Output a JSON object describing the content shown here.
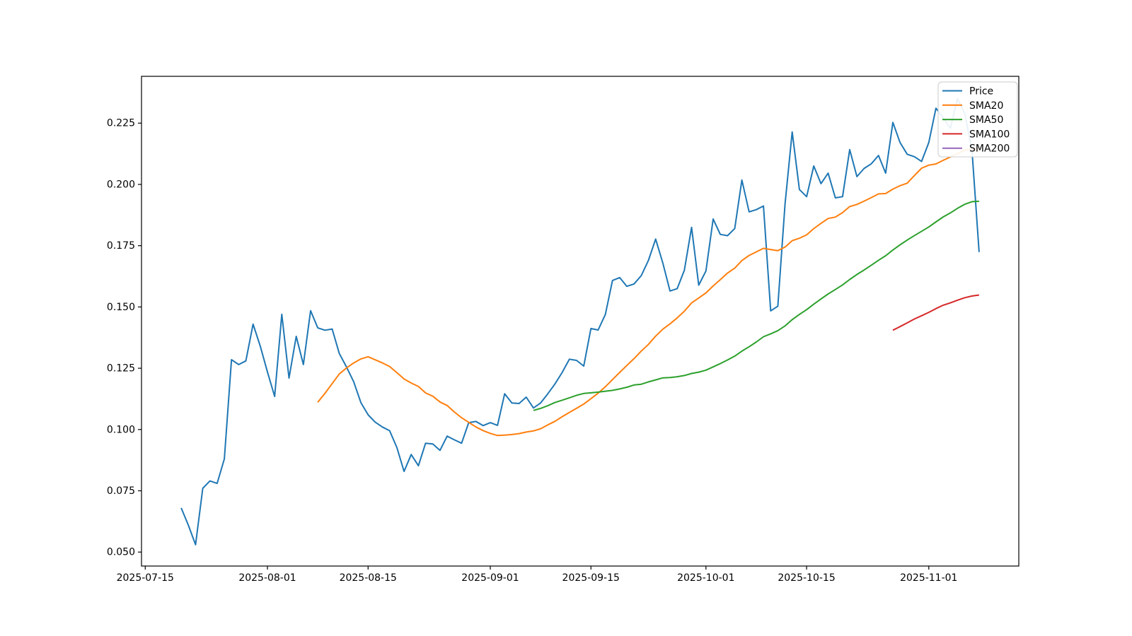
{
  "figure": {
    "background": "#ffffff",
    "spine_color": "#000000",
    "title": ""
  },
  "chart_data": {
    "type": "line",
    "title": "",
    "xlabel": "",
    "ylabel": "",
    "grid": false,
    "legend": {
      "position": "upper right",
      "entries": [
        "Price",
        "SMA20",
        "SMA50",
        "SMA100",
        "SMA200"
      ]
    },
    "y_ticks": [
      0.05,
      0.075,
      0.1,
      0.125,
      0.15,
      0.175,
      0.2,
      0.225
    ],
    "x_ticks": [
      "2025-07-15",
      "2025-08-01",
      "2025-08-15",
      "2025-09-01",
      "2025-09-15",
      "2025-10-01",
      "2025-10-15",
      "2025-11-01"
    ],
    "ylim": [
      0.0443,
      0.2441
    ],
    "x_start_date": "2025-07-20",
    "x_end_date": "2025-11-08",
    "dates": [
      "2025-07-20",
      "2025-07-21",
      "2025-07-22",
      "2025-07-23",
      "2025-07-24",
      "2025-07-25",
      "2025-07-26",
      "2025-07-27",
      "2025-07-28",
      "2025-07-29",
      "2025-07-30",
      "2025-07-31",
      "2025-08-01",
      "2025-08-02",
      "2025-08-03",
      "2025-08-04",
      "2025-08-05",
      "2025-08-06",
      "2025-08-07",
      "2025-08-08",
      "2025-08-09",
      "2025-08-10",
      "2025-08-11",
      "2025-08-12",
      "2025-08-13",
      "2025-08-14",
      "2025-08-15",
      "2025-08-16",
      "2025-08-17",
      "2025-08-18",
      "2025-08-19",
      "2025-08-20",
      "2025-08-21",
      "2025-08-22",
      "2025-08-23",
      "2025-08-24",
      "2025-08-25",
      "2025-08-26",
      "2025-08-27",
      "2025-08-28",
      "2025-08-29",
      "2025-08-30",
      "2025-08-31",
      "2025-09-01",
      "2025-09-02",
      "2025-09-03",
      "2025-09-04",
      "2025-09-05",
      "2025-09-06",
      "2025-09-07",
      "2025-09-08",
      "2025-09-09",
      "2025-09-10",
      "2025-09-11",
      "2025-09-12",
      "2025-09-13",
      "2025-09-14",
      "2025-09-15",
      "2025-09-16",
      "2025-09-17",
      "2025-09-18",
      "2025-09-19",
      "2025-09-20",
      "2025-09-21",
      "2025-09-22",
      "2025-09-23",
      "2025-09-24",
      "2025-09-25",
      "2025-09-26",
      "2025-09-27",
      "2025-09-28",
      "2025-09-29",
      "2025-09-30",
      "2025-10-01",
      "2025-10-02",
      "2025-10-03",
      "2025-10-04",
      "2025-10-05",
      "2025-10-06",
      "2025-10-07",
      "2025-10-08",
      "2025-10-09",
      "2025-10-10",
      "2025-10-11",
      "2025-10-12",
      "2025-10-13",
      "2025-10-14",
      "2025-10-15",
      "2025-10-16",
      "2025-10-17",
      "2025-10-18",
      "2025-10-19",
      "2025-10-20",
      "2025-10-21",
      "2025-10-22",
      "2025-10-23",
      "2025-10-24",
      "2025-10-25",
      "2025-10-26",
      "2025-10-27",
      "2025-10-28",
      "2025-10-29",
      "2025-10-30",
      "2025-10-31",
      "2025-11-01",
      "2025-11-02",
      "2025-11-03",
      "2025-11-04",
      "2025-11-05",
      "2025-11-06",
      "2025-11-07",
      "2025-11-08"
    ],
    "series": [
      {
        "name": "Price",
        "color": "#1f77b4",
        "kind": "raw",
        "values": [
          0.068,
          0.061,
          0.053,
          0.076,
          0.079,
          0.078,
          0.088,
          0.1285,
          0.1265,
          0.128,
          0.143,
          0.134,
          0.1235,
          0.1135,
          0.147,
          0.121,
          0.138,
          0.1265,
          0.1485,
          0.1415,
          0.1405,
          0.141,
          0.131,
          0.1255,
          0.1195,
          0.111,
          0.106,
          0.103,
          0.101,
          0.0995,
          0.0927,
          0.0829,
          0.0898,
          0.0852,
          0.0944,
          0.0941,
          0.0915,
          0.0973,
          0.0958,
          0.0944,
          0.1028,
          0.1033,
          0.1016,
          0.1028,
          0.1017,
          0.1146,
          0.1108,
          0.1106,
          0.1132,
          0.1088,
          0.1108,
          0.1146,
          0.1186,
          0.1233,
          0.1287,
          0.1282,
          0.1259,
          0.1412,
          0.1406,
          0.1469,
          0.1608,
          0.162,
          0.1584,
          0.1594,
          0.1628,
          0.169,
          0.1777,
          0.168,
          0.1565,
          0.1575,
          0.165,
          0.1825,
          0.1589,
          0.1647,
          0.1859,
          0.1796,
          0.1791,
          0.182,
          0.2018,
          0.1888,
          0.1897,
          0.1912,
          0.1484,
          0.1503,
          0.192,
          0.2214,
          0.1979,
          0.195,
          0.2075,
          0.2003,
          0.2046,
          0.1945,
          0.195,
          0.2142,
          0.2032,
          0.2065,
          0.2084,
          0.2118,
          0.2046,
          0.2253,
          0.2171,
          0.2123,
          0.2113,
          0.2094,
          0.2171,
          0.2311,
          0.2272,
          0.2229,
          0.235,
          0.229,
          0.214,
          0.1724
        ]
      },
      {
        "name": "SMA20",
        "color": "#ff7f0e",
        "kind": "sma",
        "window": 20
      },
      {
        "name": "SMA50",
        "color": "#2ca02c",
        "kind": "sma",
        "window": 50
      },
      {
        "name": "SMA100",
        "color": "#d62728",
        "kind": "sma",
        "window": 100
      },
      {
        "name": "SMA200",
        "color": "#9467bd",
        "kind": "sma",
        "window": 200
      }
    ]
  }
}
